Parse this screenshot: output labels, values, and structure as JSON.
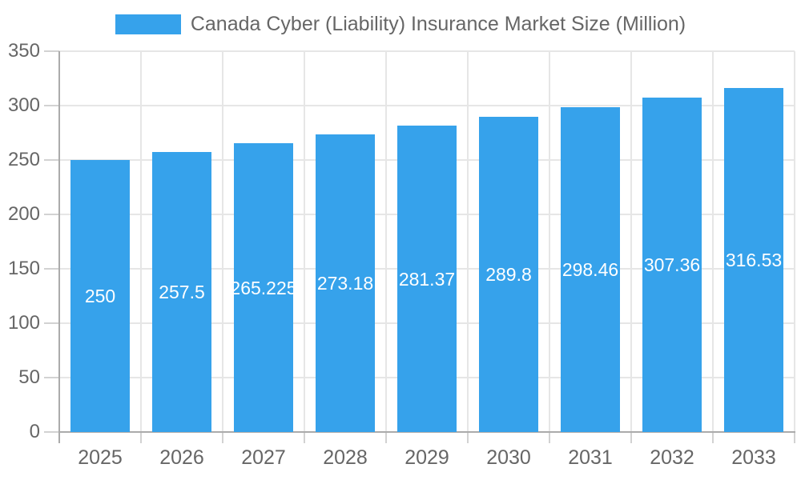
{
  "chart_data": {
    "type": "bar",
    "title": "Canada Cyber (Liability) Insurance Market Size (Million)",
    "legend_position": "top",
    "grid": true,
    "categories": [
      "2025",
      "2026",
      "2027",
      "2028",
      "2029",
      "2030",
      "2031",
      "2032",
      "2033"
    ],
    "values": [
      250,
      257.5,
      265.225,
      273.18,
      281.37,
      289.8,
      298.46,
      307.36,
      316.53
    ],
    "value_labels": [
      "250",
      "257.5",
      "265.225",
      "273.18",
      "281.37",
      "289.8",
      "298.46",
      "307.36",
      "316.53"
    ],
    "xlabel": "",
    "ylabel": "",
    "ylim": [
      0,
      350
    ],
    "ytick_step": 50,
    "ytick_labels": [
      "0",
      "50",
      "100",
      "150",
      "200",
      "250",
      "300",
      "350"
    ],
    "colors": {
      "bar": "#36A2EB",
      "grid": "#e6e6e6",
      "axis": "#ababab",
      "tick": "#d2d2d2",
      "text": "#666666",
      "value_text": "#ffffff",
      "background": "#ffffff"
    }
  }
}
